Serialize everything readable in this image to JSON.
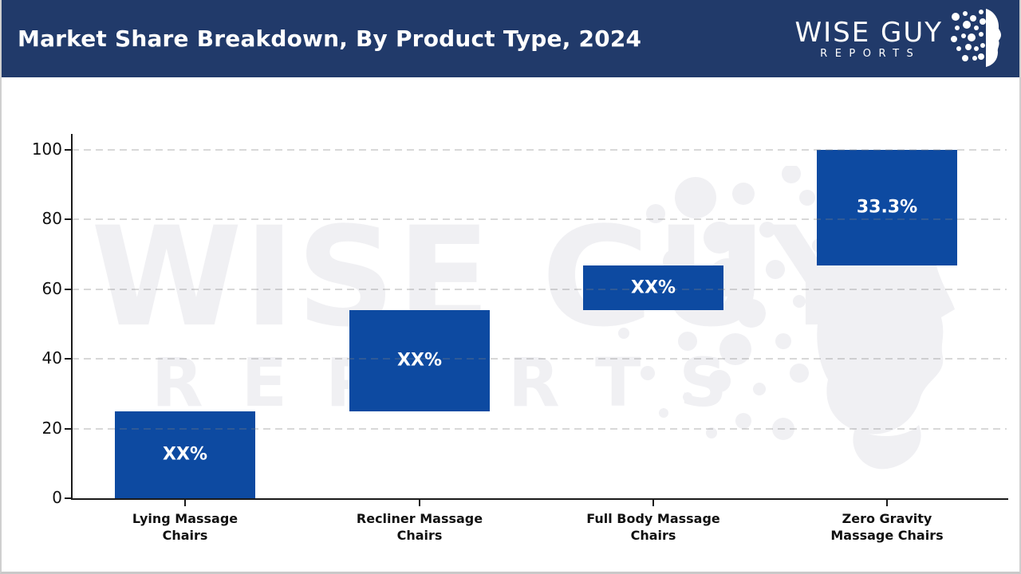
{
  "header": {
    "title": "Market Share Breakdown, By Product Type, 2024",
    "background_color": "#213a6a",
    "logo": {
      "line1": "WISE GUY",
      "line2": "REPORTS"
    }
  },
  "watermark": {
    "line1": "WISE GUY",
    "line2": "REPORTS",
    "color": "#f0f0f3"
  },
  "chart_data": {
    "type": "bar",
    "variant": "floating-waterfall",
    "title": "Market Share Breakdown, By Product Type, 2024",
    "xlabel": "",
    "ylabel": "",
    "ylim": [
      0,
      100
    ],
    "yticks": [
      0,
      20,
      40,
      60,
      80,
      100
    ],
    "grid": "horizontal-dashed",
    "legend": "none",
    "bar_color": "#0d4aa1",
    "value_label_color": "#ffffff",
    "categories": [
      {
        "label": "Lying Massage Chairs",
        "lines": [
          "Lying Massage",
          "Chairs"
        ]
      },
      {
        "label": "Recliner Massage Chairs",
        "lines": [
          "Recliner Massage",
          "Chairs"
        ]
      },
      {
        "label": "Full Body Massage Chairs",
        "lines": [
          "Full Body Massage",
          "Chairs"
        ]
      },
      {
        "label": "Zero Gravity Massage Chairs",
        "lines": [
          "Zero Gravity",
          "Massage Chairs"
        ]
      }
    ],
    "segments": [
      {
        "category": "Lying Massage Chairs",
        "from": 0,
        "to": 25,
        "value_label": "XX%"
      },
      {
        "category": "Recliner Massage Chairs",
        "from": 25,
        "to": 54,
        "value_label": "XX%"
      },
      {
        "category": "Full Body Massage Chairs",
        "from": 54,
        "to": 66.7,
        "value_label": "XX%"
      },
      {
        "category": "Zero Gravity Massage Chairs",
        "from": 66.7,
        "to": 100,
        "value_label": "33.3%"
      }
    ]
  }
}
